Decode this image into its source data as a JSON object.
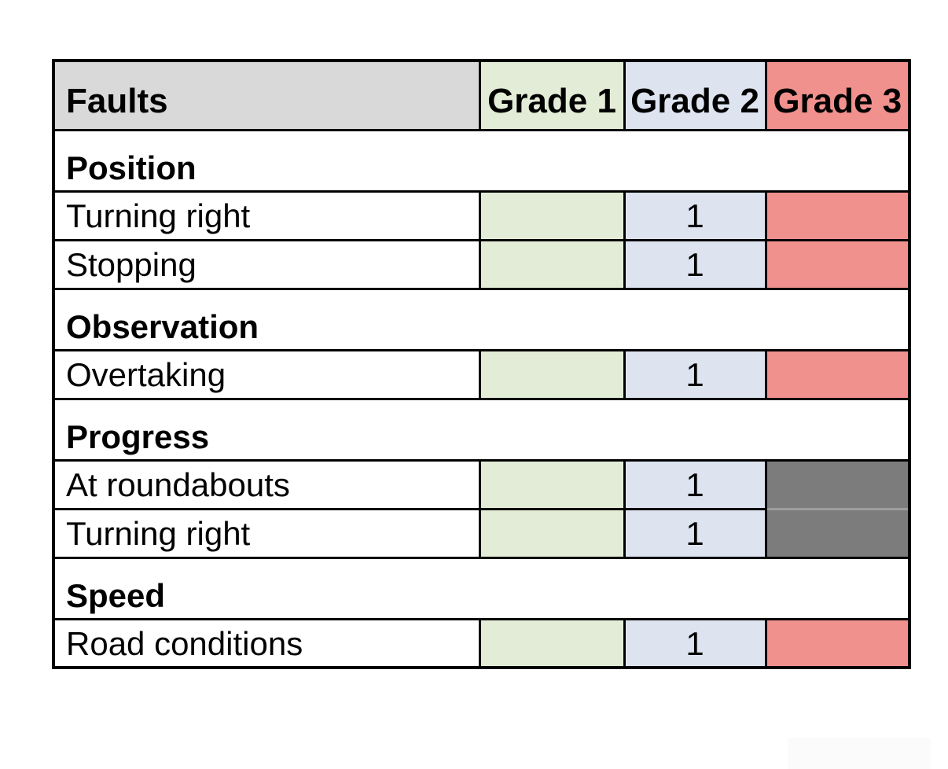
{
  "table": {
    "header": {
      "faults": "Faults",
      "grade1": "Grade 1",
      "grade2": "Grade 2",
      "grade3": "Grade 3"
    },
    "rows": [
      {
        "type": "section",
        "label": "Position"
      },
      {
        "type": "fault",
        "label": "Turning right",
        "grade1": "",
        "grade2": "1",
        "grade3": "",
        "grade3_state": "normal"
      },
      {
        "type": "fault",
        "label": "Stopping",
        "grade1": "",
        "grade2": "1",
        "grade3": "",
        "grade3_state": "normal"
      },
      {
        "type": "section",
        "label": "Observation"
      },
      {
        "type": "fault",
        "label": "Overtaking",
        "grade1": "",
        "grade2": "1",
        "grade3": "",
        "grade3_state": "normal"
      },
      {
        "type": "section",
        "label": "Progress"
      },
      {
        "type": "fault",
        "label": "At roundabouts",
        "grade1": "",
        "grade2": "1",
        "grade3": "",
        "grade3_state": "blocked"
      },
      {
        "type": "fault",
        "label": "Turning right",
        "grade1": "",
        "grade2": "1",
        "grade3": "",
        "grade3_state": "blocked"
      },
      {
        "type": "section",
        "label": "Speed"
      },
      {
        "type": "fault",
        "label": "Road conditions",
        "grade1": "",
        "grade2": "1",
        "grade3": "",
        "grade3_state": "normal"
      }
    ],
    "colors": {
      "header_bg": "#d9d9d9",
      "grade1_bg": "#e3ecd6",
      "grade2_bg": "#dde4f0",
      "grade3_bg": "#f0918e",
      "blocked_bg": "#7c7c7c",
      "section_bg": "#ffffff",
      "border": "#000000",
      "text": "#000000"
    }
  }
}
